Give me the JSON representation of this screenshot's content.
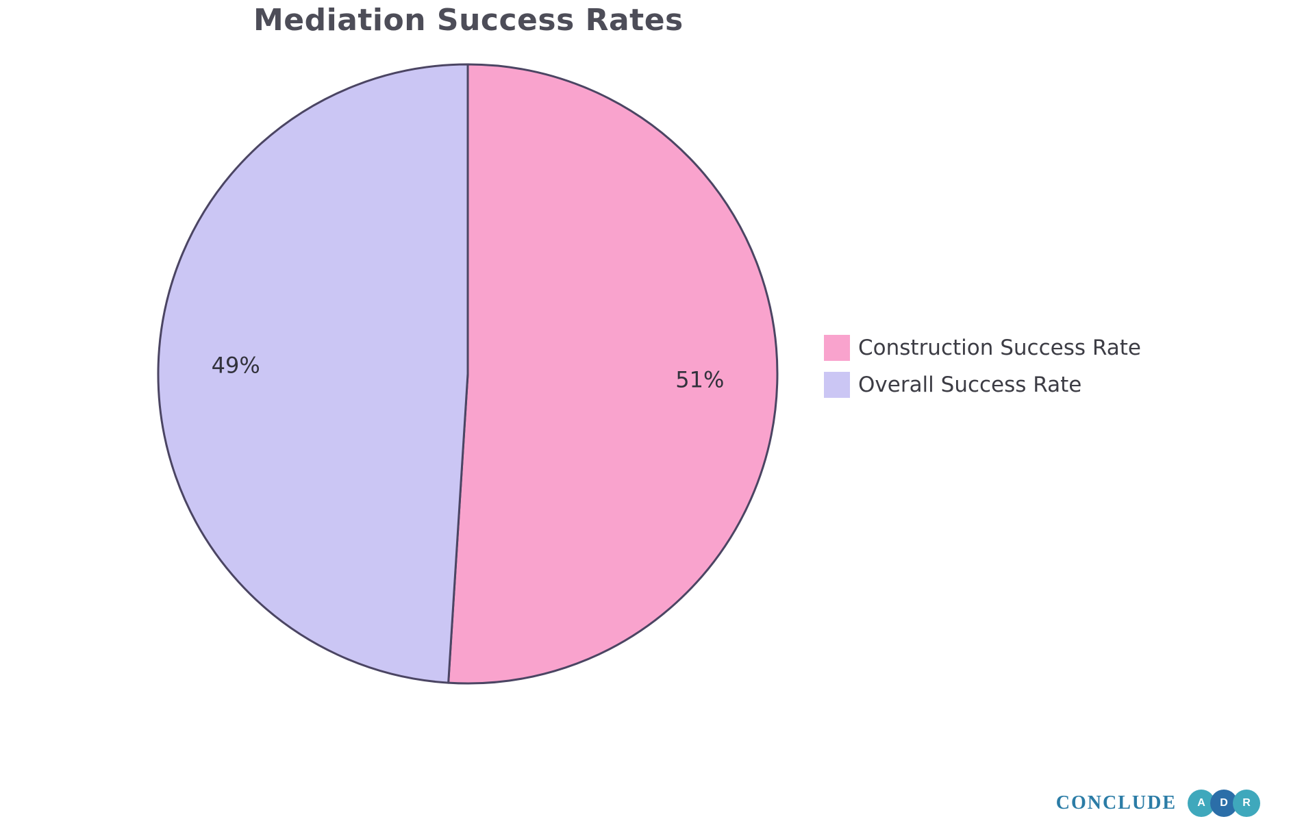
{
  "title": "Mediation Success Rates",
  "chart_data": {
    "type": "pie",
    "title": "Mediation Success Rates",
    "slices": [
      {
        "label": "Construction Success Rate",
        "value": 51,
        "display": "51%",
        "color": "#F9A3CD"
      },
      {
        "label": "Overall Success Rate",
        "value": 49,
        "display": "49%",
        "color": "#CBC6F4"
      }
    ],
    "stroke_color": "#4B4563",
    "start_angle_deg": 0,
    "direction": "clockwise",
    "legend_position": "right",
    "label_radius_fraction": 0.75,
    "grid": false
  },
  "legend": {
    "items": [
      {
        "label": "Construction Success Rate",
        "color": "#F9A3CD"
      },
      {
        "label": "Overall Success Rate",
        "color": "#CBC6F4"
      }
    ]
  },
  "logo": {
    "wordmark": "CONCLUDE",
    "wordmark_color": "#2B7CA6",
    "badges": [
      {
        "letter": "A",
        "color": "#3FA8BC"
      },
      {
        "letter": "D",
        "color": "#2B6EA8"
      },
      {
        "letter": "R",
        "color": "#3FA8BC"
      }
    ]
  }
}
